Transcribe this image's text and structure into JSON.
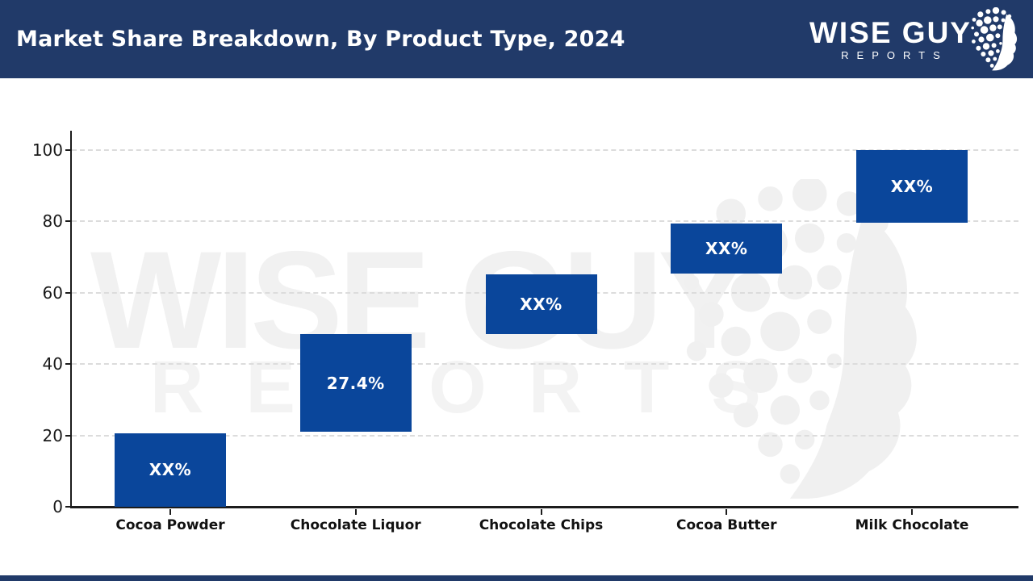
{
  "header": {
    "title": "Market Share Breakdown, By Product Type, 2024",
    "logo": {
      "line1": "WISE GUY",
      "line2": "REPORTS"
    }
  },
  "watermark": {
    "line1": "WISE GUY",
    "line2": "REPORTS"
  },
  "colors": {
    "header_bg": "#213a69",
    "footer_bg": "#213a69",
    "bar": "#0a469b",
    "grid": "#dcdcdc",
    "axis": "#1c1c1c",
    "watermark": "#f1f1f1"
  },
  "chart_data": {
    "type": "bar",
    "subtype": "waterfall",
    "title": "Market Share Breakdown, By Product Type, 2024",
    "xlabel": "",
    "ylabel": "",
    "ylim": [
      0,
      105
    ],
    "y_ticks": [
      0,
      20,
      40,
      60,
      80,
      100
    ],
    "grid": "horizontal-dashed",
    "legend": "none",
    "categories": [
      "Cocoa Powder",
      "Chocolate Liquor",
      "Chocolate Chips",
      "Cocoa Butter",
      "Milk Chocolate"
    ],
    "bars": [
      {
        "category": "Cocoa Powder",
        "start": 0,
        "end": 20.7,
        "label": "XX%"
      },
      {
        "category": "Chocolate Liquor",
        "start": 21.0,
        "end": 48.4,
        "label": "27.4%"
      },
      {
        "category": "Chocolate Chips",
        "start": 48.4,
        "end": 65.2,
        "label": "XX%"
      },
      {
        "category": "Cocoa Butter",
        "start": 65.4,
        "end": 79.4,
        "label": "XX%"
      },
      {
        "category": "Milk Chocolate",
        "start": 79.6,
        "end": 100,
        "label": "XX%"
      }
    ]
  }
}
